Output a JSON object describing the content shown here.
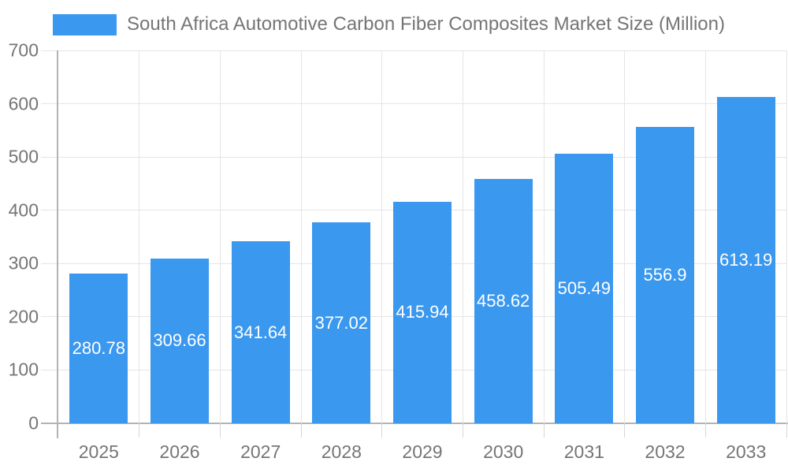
{
  "chart_data": {
    "type": "bar",
    "title": "South Africa Automotive Carbon Fiber Composites Market Size (Million)",
    "categories": [
      "2025",
      "2026",
      "2027",
      "2028",
      "2029",
      "2030",
      "2031",
      "2032",
      "2033"
    ],
    "values": [
      280.78,
      309.66,
      341.64,
      377.02,
      415.94,
      458.62,
      505.49,
      556.9,
      613.19
    ],
    "value_labels": [
      "280.78",
      "309.66",
      "341.64",
      "377.02",
      "415.94",
      "458.62",
      "505.49",
      "556.9",
      "613.19"
    ],
    "xlabel": "",
    "ylabel": "",
    "ylim": [
      0,
      700
    ],
    "ytick_interval": 100,
    "ytick_labels": [
      "0",
      "100",
      "200",
      "300",
      "400",
      "500",
      "600",
      "700"
    ],
    "grid": true,
    "legend_position": "top-left",
    "value_labels_position": "inside-center"
  },
  "style": {
    "bar_color": "#3b98ef",
    "value_label_color": "#ffffff",
    "axis_text_color": "#757575",
    "grid_color": "#e5e5e5",
    "tick_color": "#d6d6d6",
    "axis_line_color": "#b3b3b3",
    "background_color": "#ffffff"
  }
}
